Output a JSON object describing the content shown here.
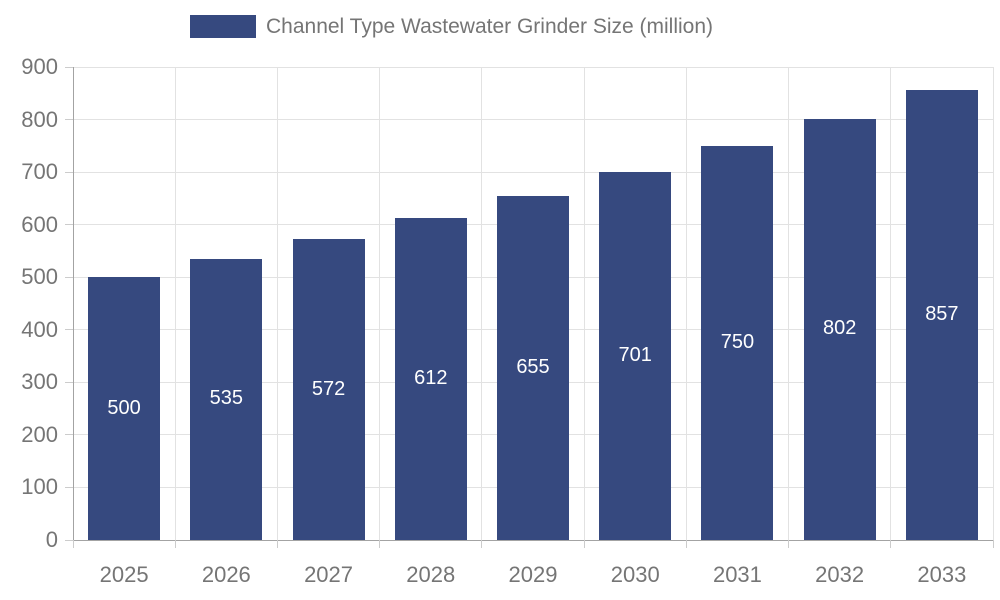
{
  "chart_data": {
    "type": "bar",
    "title": "Channel Type Wastewater Grinder Size (million)",
    "categories": [
      "2025",
      "2026",
      "2027",
      "2028",
      "2029",
      "2030",
      "2031",
      "2032",
      "2033"
    ],
    "values": [
      500,
      535,
      572,
      612,
      655,
      701,
      750,
      802,
      857
    ],
    "xlabel": "",
    "ylabel": "",
    "ylim": [
      0,
      900
    ],
    "ytick_step": 100,
    "yticks": [
      0,
      100,
      200,
      300,
      400,
      500,
      600,
      700,
      800,
      900
    ],
    "grid": true,
    "legend_position": "top-center",
    "bar_color": "#36497f",
    "value_label_color": "#ffffff",
    "axis_text_color": "#757575",
    "grid_color": "#e2e2e2",
    "axis_line_color": "#a3a3a3"
  }
}
